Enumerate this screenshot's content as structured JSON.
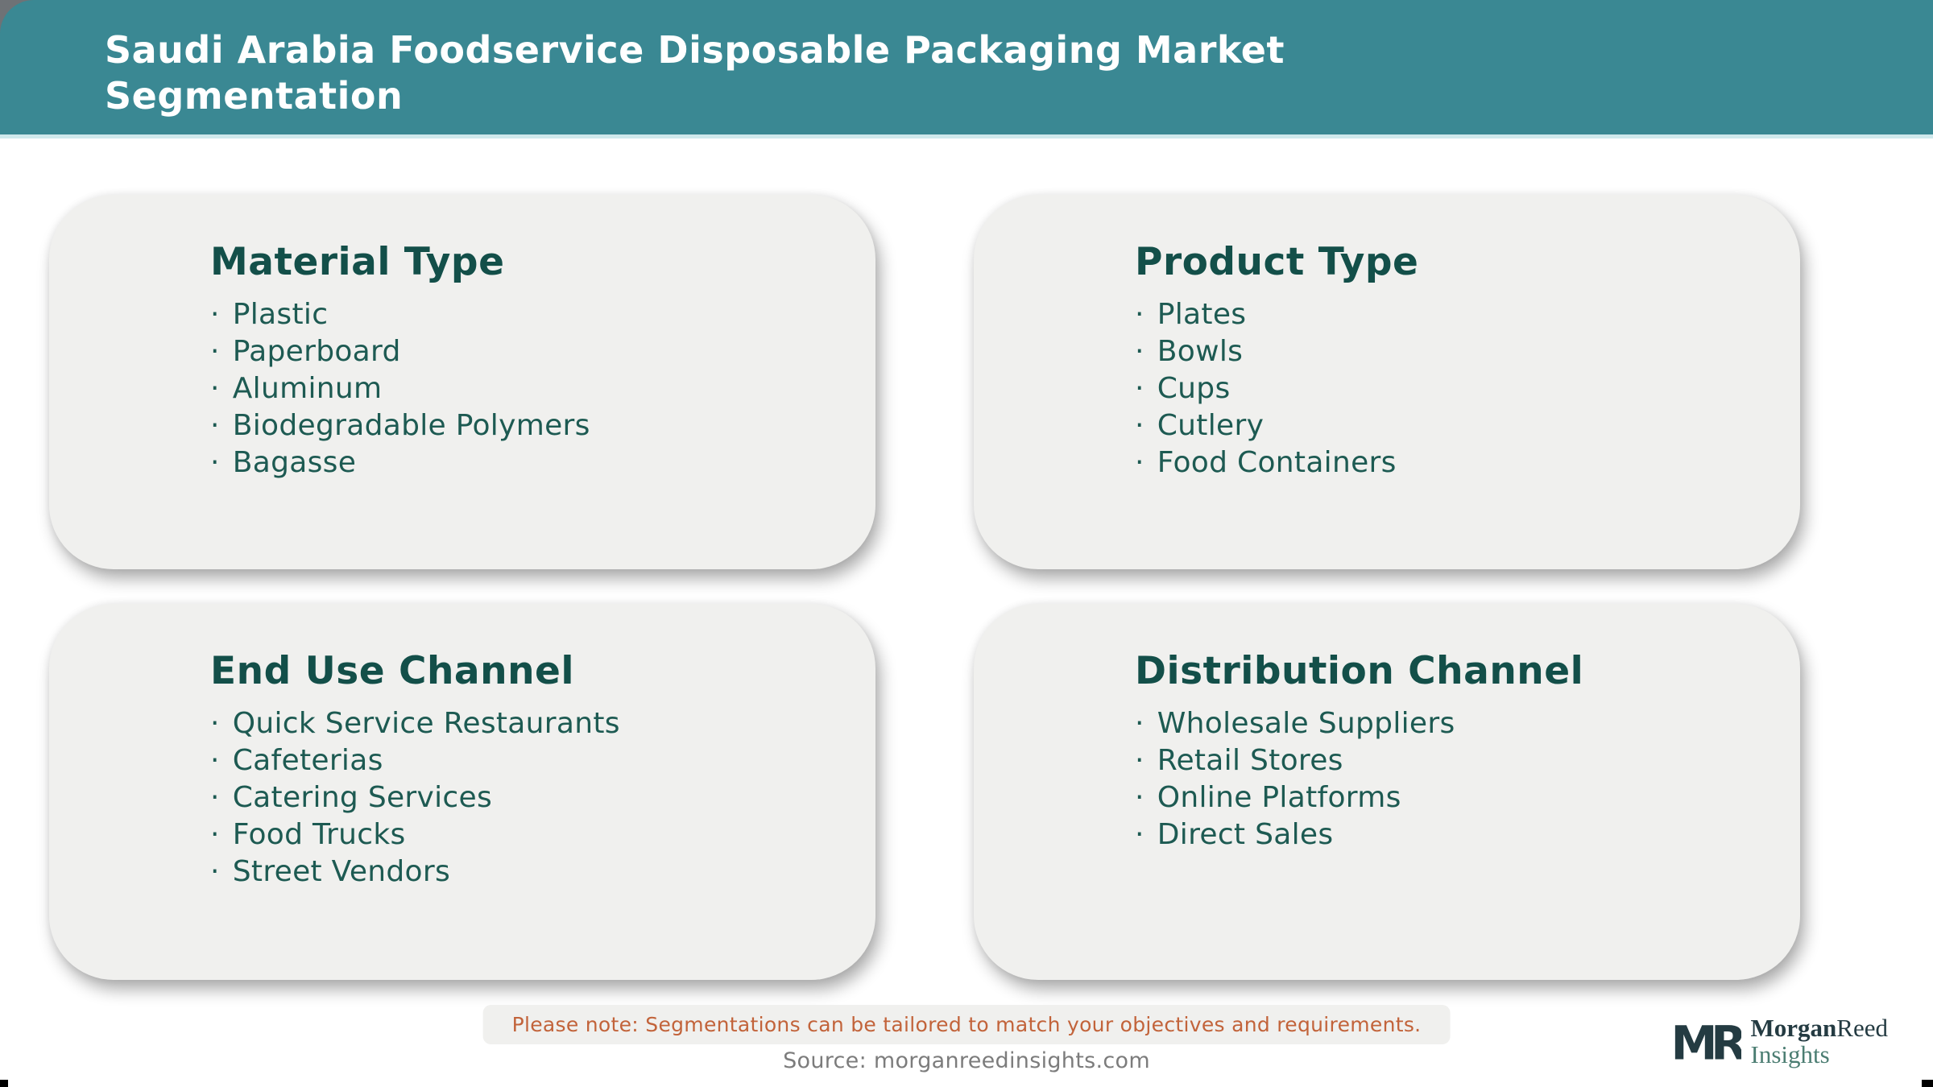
{
  "header": {
    "title": "Saudi Arabia Foodservice Disposable Packaging Market Segmentation"
  },
  "cards": [
    {
      "title": "Material Type",
      "items": [
        "Plastic",
        "Paperboard",
        "Aluminum",
        "Biodegradable Polymers",
        "Bagasse"
      ]
    },
    {
      "title": "Product Type",
      "items": [
        "Plates",
        "Bowls",
        "Cups",
        "Cutlery",
        "Food Containers"
      ]
    },
    {
      "title": "End Use Channel",
      "items": [
        "Quick Service Restaurants",
        "Cafeterias",
        "Catering Services",
        "Food Trucks",
        "Street Vendors"
      ]
    },
    {
      "title": "Distribution Channel",
      "items": [
        "Wholesale Suppliers",
        "Retail Stores",
        "Online Platforms",
        "Direct Sales"
      ]
    }
  ],
  "footer": {
    "note": "Please note: Segmentations can be tailored to match your objectives and requirements.",
    "source": "Source: morganreedinsights.com"
  },
  "logo": {
    "monogram": "MR",
    "morgan": "Morgan",
    "reed": "Reed",
    "insights": "Insights"
  },
  "colors": {
    "header_bg": "#3a8893",
    "header_underline": "#cfe9ec",
    "card_bg": "#f0f0ee",
    "card_title": "#134f49",
    "card_item": "#1d5a52",
    "note_text": "#c2633a",
    "source_text": "#7c7c7c",
    "logo_dark": "#243b42",
    "logo_teal": "#4b7d72"
  }
}
